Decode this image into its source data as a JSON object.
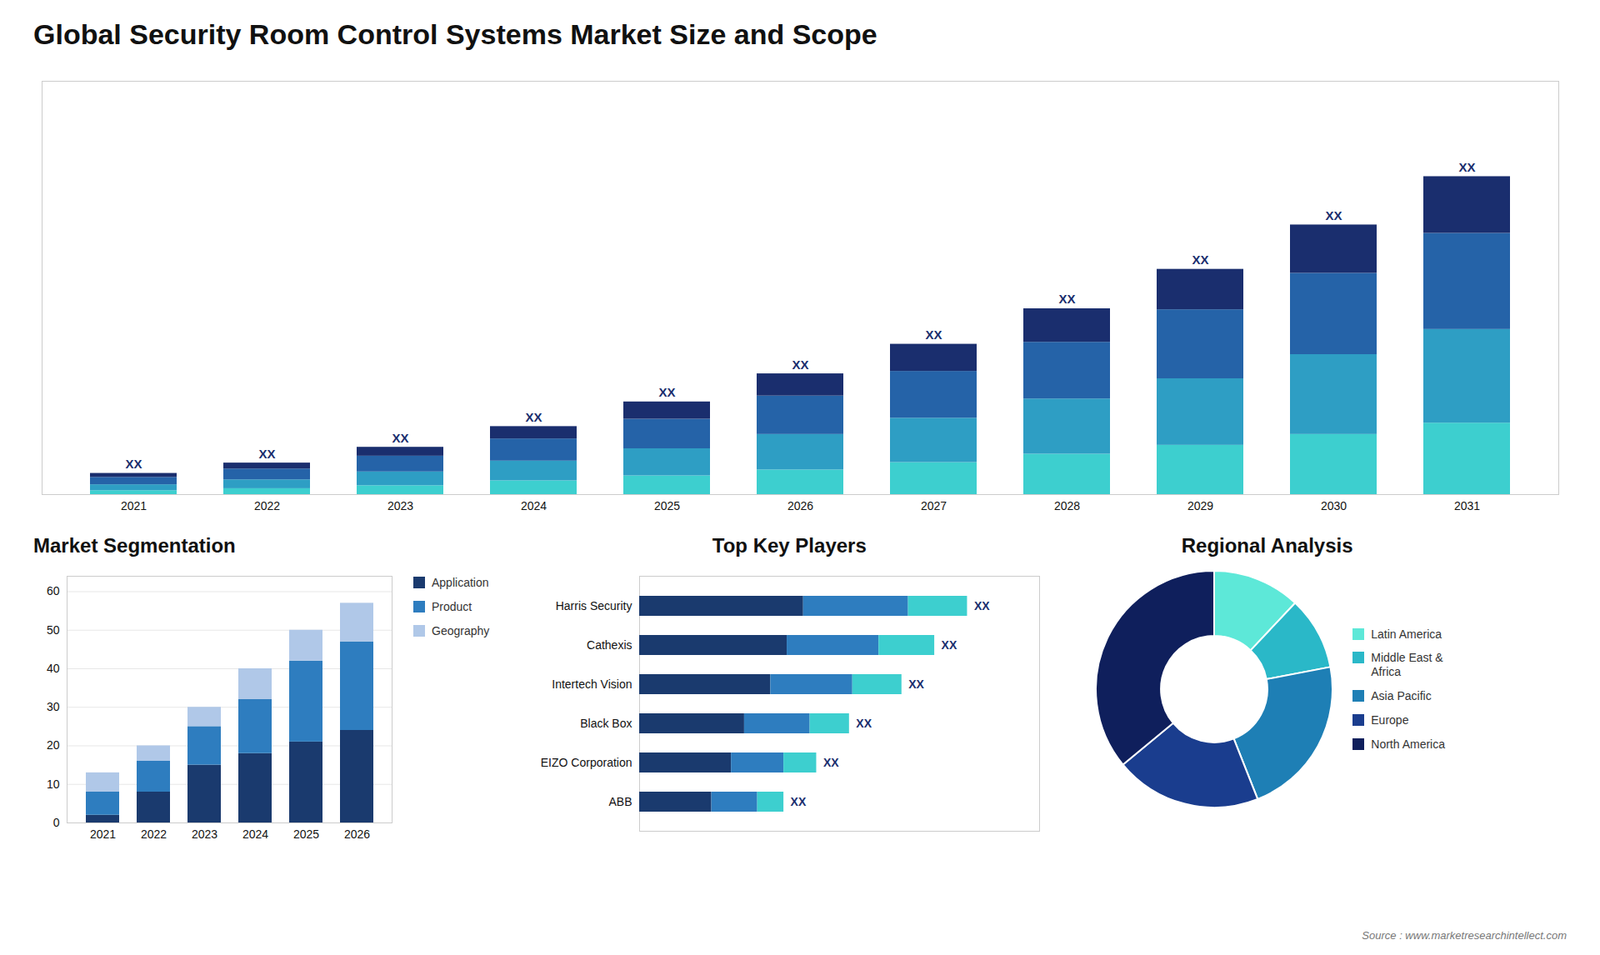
{
  "chart_data": [
    {
      "type": "bar",
      "title": "Global Security Room Control Systems Market Size and Scope",
      "stacked": true,
      "categories": [
        "2021",
        "2022",
        "2023",
        "2024",
        "2025",
        "2026",
        "2027",
        "2028",
        "2029",
        "2030",
        "2031"
      ],
      "series": [
        {
          "color": "#3dcfcf",
          "values": [
            0.8,
            1.2,
            1.8,
            2.8,
            3.8,
            5.0,
            6.5,
            8.2,
            10.0,
            12.2,
            14.5
          ]
        },
        {
          "color": "#2e9ec4",
          "values": [
            1.2,
            1.8,
            2.8,
            4.0,
            5.5,
            7.2,
            9.0,
            11.2,
            13.5,
            16.2,
            19.0
          ]
        },
        {
          "color": "#2563a8",
          "values": [
            1.5,
            2.2,
            3.2,
            4.5,
            6.0,
            7.8,
            9.5,
            11.5,
            14.0,
            16.5,
            19.5
          ]
        },
        {
          "color": "#1a2e6e",
          "values": [
            0.8,
            1.2,
            1.8,
            2.5,
            3.5,
            4.5,
            5.5,
            6.8,
            8.2,
            9.8,
            11.5
          ]
        }
      ],
      "annotations": [
        "XX",
        "XX",
        "XX",
        "XX",
        "XX",
        "XX",
        "XX",
        "XX",
        "XX",
        "XX",
        "XX"
      ],
      "ylim": [
        0,
        83.85
      ],
      "tick_labels": "x",
      "grid": false
    },
    {
      "type": "bar",
      "title": "Market Segmentation",
      "stacked": true,
      "categories": [
        "2021",
        "2022",
        "2023",
        "2024",
        "2025",
        "2026"
      ],
      "series": [
        {
          "name": "Application",
          "color": "#1a3a6e",
          "values": [
            2,
            8,
            15,
            18,
            21,
            24
          ]
        },
        {
          "name": "Product",
          "color": "#2e7dbf",
          "values": [
            6,
            8,
            10,
            14,
            21,
            23
          ]
        },
        {
          "name": "Geography",
          "color": "#b0c8e8",
          "values": [
            5,
            4,
            5,
            8,
            8,
            10
          ]
        }
      ],
      "ylim": [
        0,
        64
      ],
      "yticks": [
        0,
        10,
        20,
        30,
        40,
        50,
        60
      ],
      "grid": true,
      "legend": "right"
    },
    {
      "type": "bar",
      "title": "Top Key Players",
      "stacked": true,
      "orientation": "horizontal",
      "categories": [
        "Harris Security",
        "Cathexis",
        "Intertech Vision",
        "Black Box",
        "EIZO Corporation",
        "ABB"
      ],
      "series": [
        {
          "color": "#1a3a6e",
          "values": [
            5.0,
            4.5,
            4.0,
            3.2,
            2.8,
            2.2
          ]
        },
        {
          "color": "#2e7dbf",
          "values": [
            3.2,
            2.8,
            2.5,
            2.0,
            1.6,
            1.4
          ]
        },
        {
          "color": "#3dcfcf",
          "values": [
            1.8,
            1.7,
            1.5,
            1.2,
            1.0,
            0.8
          ]
        }
      ],
      "annotations": [
        "XX",
        "XX",
        "XX",
        "XX",
        "XX",
        "XX"
      ],
      "xlim": [
        0,
        12.2
      ],
      "tick_labels": "y",
      "grid": false
    },
    {
      "type": "donut",
      "title": "Regional Analysis",
      "categories": [
        "Latin America",
        "Middle East &\nAfrica",
        "Asia Pacific",
        "Europe",
        "North America"
      ],
      "values": [
        12,
        10,
        22,
        20,
        36
      ],
      "colors": [
        "#5de8d8",
        "#2ab8c8",
        "#1e7fb5",
        "#1a3d8e",
        "#0f1f5c"
      ],
      "legend": "right",
      "annotations": [
        "Source : www.marketresearchintellect.com"
      ]
    }
  ]
}
